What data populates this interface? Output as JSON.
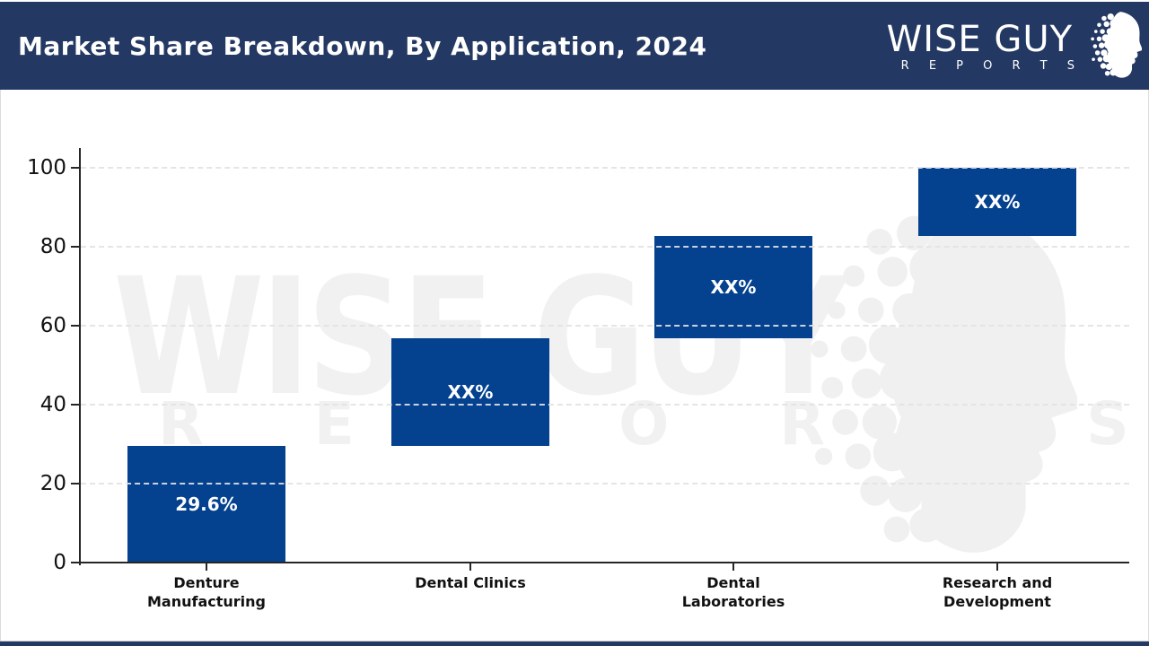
{
  "header": {
    "title": "Market Share Breakdown, By Application, 2024",
    "logo": {
      "line1": "WISE GUY",
      "line2": "R E P O R T S"
    },
    "bg_color": "#233862"
  },
  "watermark": {
    "line1": "WISE GUY",
    "line2": "R E P O R T S"
  },
  "colors": {
    "bar": "#04418f",
    "header_navy": "#233862",
    "axis": "#262626",
    "gridline": "#e2e2e2",
    "watermark": "#f1f1f2"
  },
  "chart_data": {
    "type": "bar",
    "subtype": "waterfall",
    "title": "Market Share Breakdown, By Application, 2024",
    "categories": [
      "Denture Manufacturing",
      "Dental Clinics",
      "Dental Laboratories",
      "Research and Development"
    ],
    "category_lines": [
      [
        "Denture",
        "Manufacturing"
      ],
      [
        "Dental Clinics"
      ],
      [
        "Dental",
        "Laboratories"
      ],
      [
        "Research and",
        "Development"
      ]
    ],
    "bars": [
      {
        "start": 0,
        "end": 29.6,
        "label": "29.6%"
      },
      {
        "start": 29.6,
        "end": 56.8,
        "label": "XX%"
      },
      {
        "start": 56.8,
        "end": 82.7,
        "label": "XX%"
      },
      {
        "start": 82.7,
        "end": 100,
        "label": "XX%"
      }
    ],
    "ylim": [
      0,
      100
    ],
    "yticks": [
      0,
      20,
      40,
      60,
      80,
      100
    ],
    "xlabel": "",
    "ylabel": "",
    "grid": "horizontal-dashed",
    "legend": "none",
    "bar_color": "#04418f"
  }
}
